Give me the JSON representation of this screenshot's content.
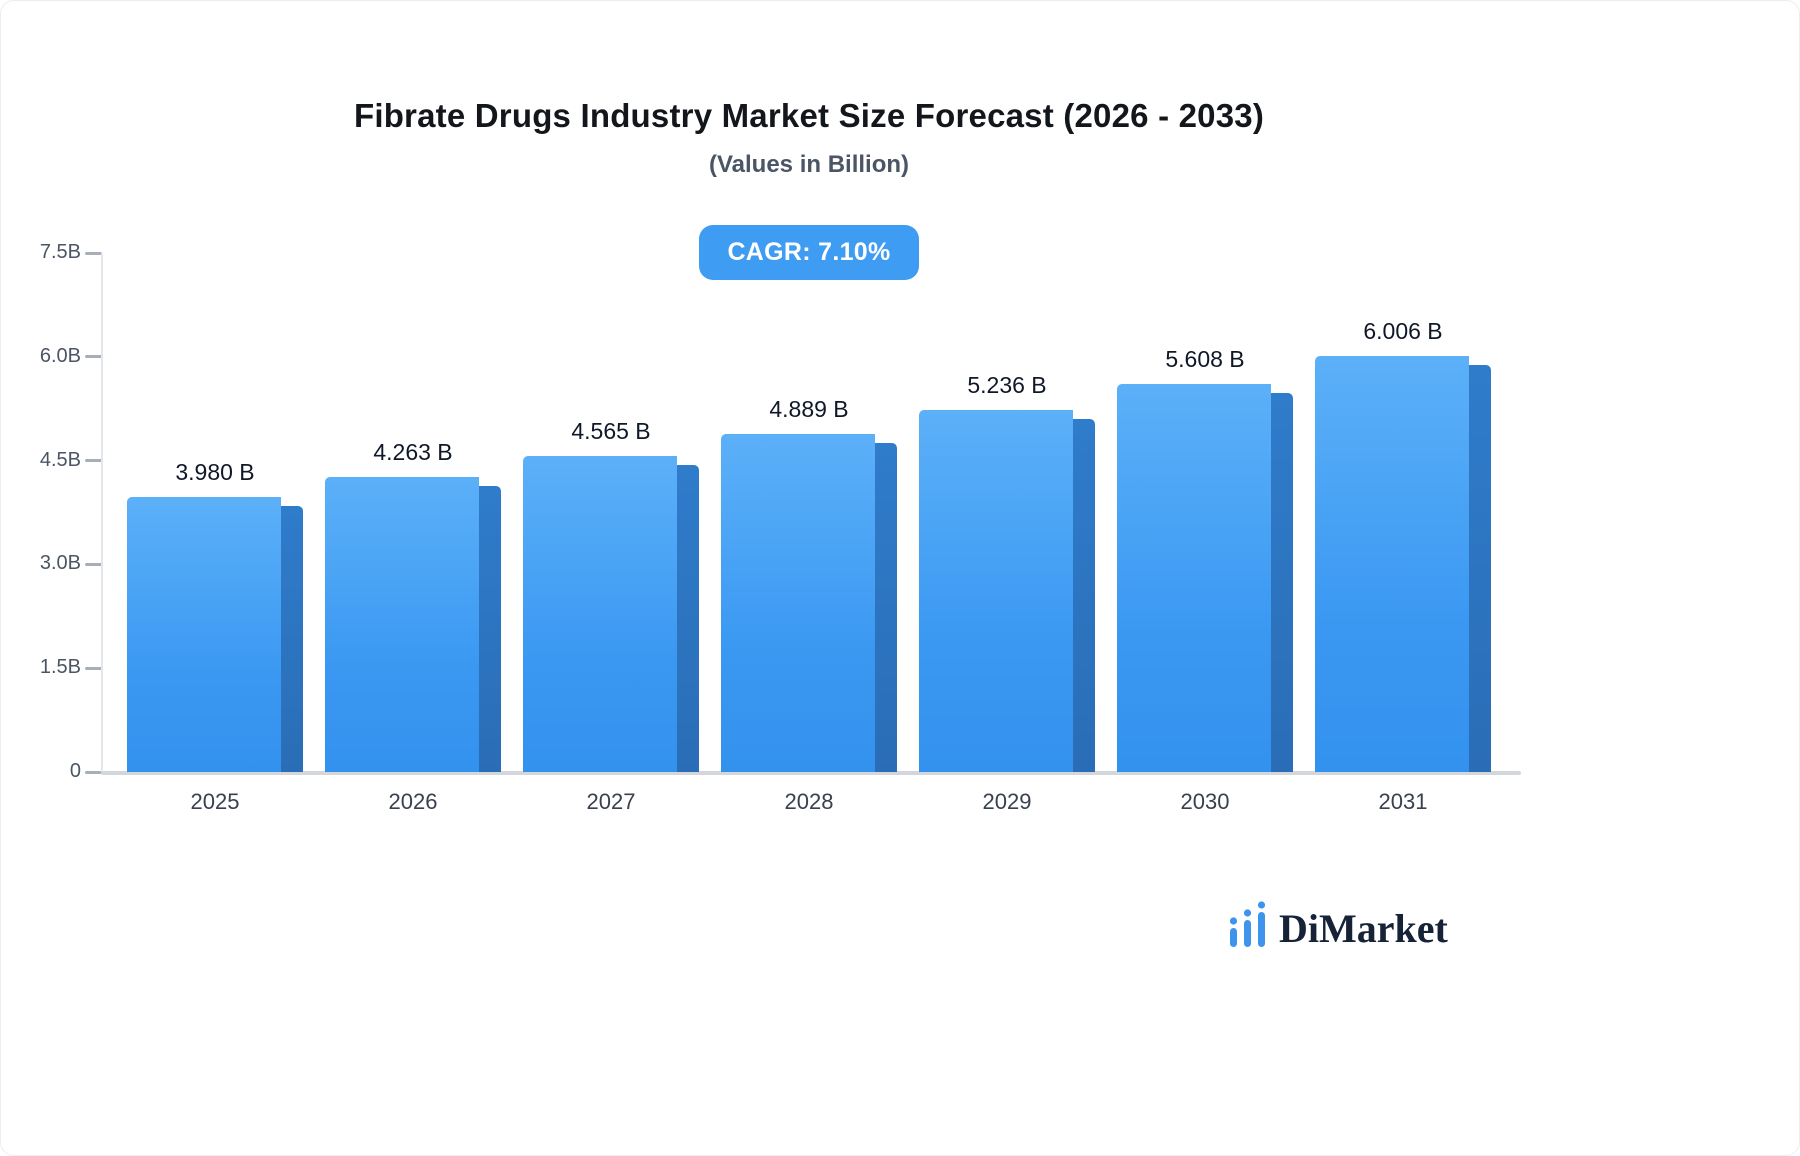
{
  "title": "Fibrate Drugs Industry Market Size Forecast (2026 - 2033)",
  "subtitle": "(Values in Billion)",
  "badge": "CAGR: 7.10%",
  "brand": "DiMarket",
  "colors": {
    "bar_main": "#3E9CF3",
    "bar_main_top": "#5CB0F8",
    "bar_side": "#2C72BE",
    "badge_bg": "#3E9CF3",
    "axis": "#D3D7DC",
    "tick_label": "#4B5563",
    "value_label": "#101828",
    "brand_text": "#152238"
  },
  "chart_data": {
    "type": "bar",
    "categories": [
      "2025",
      "2026",
      "2027",
      "2028",
      "2029",
      "2030",
      "2031"
    ],
    "values": [
      3.98,
      4.263,
      4.565,
      4.889,
      5.236,
      5.608,
      6.006
    ],
    "value_labels": [
      "3.980 B",
      "4.263 B",
      "4.565 B",
      "4.889 B",
      "5.236 B",
      "5.608 B",
      "6.006 B"
    ],
    "title": "Fibrate Drugs Industry Market Size Forecast (2026 - 2033)",
    "subtitle": "(Values in Billion)",
    "annotation": "CAGR: 7.10%",
    "xlabel": "",
    "ylabel": "",
    "ylim": [
      0,
      7.5
    ],
    "yticks": [
      0,
      1.5,
      3.0,
      4.5,
      6.0,
      7.5
    ],
    "ytick_labels": [
      "0",
      "1.5B",
      "3.0B",
      "4.5B",
      "6.0B",
      "7.5B"
    ],
    "grid": "off",
    "legend": "none"
  }
}
